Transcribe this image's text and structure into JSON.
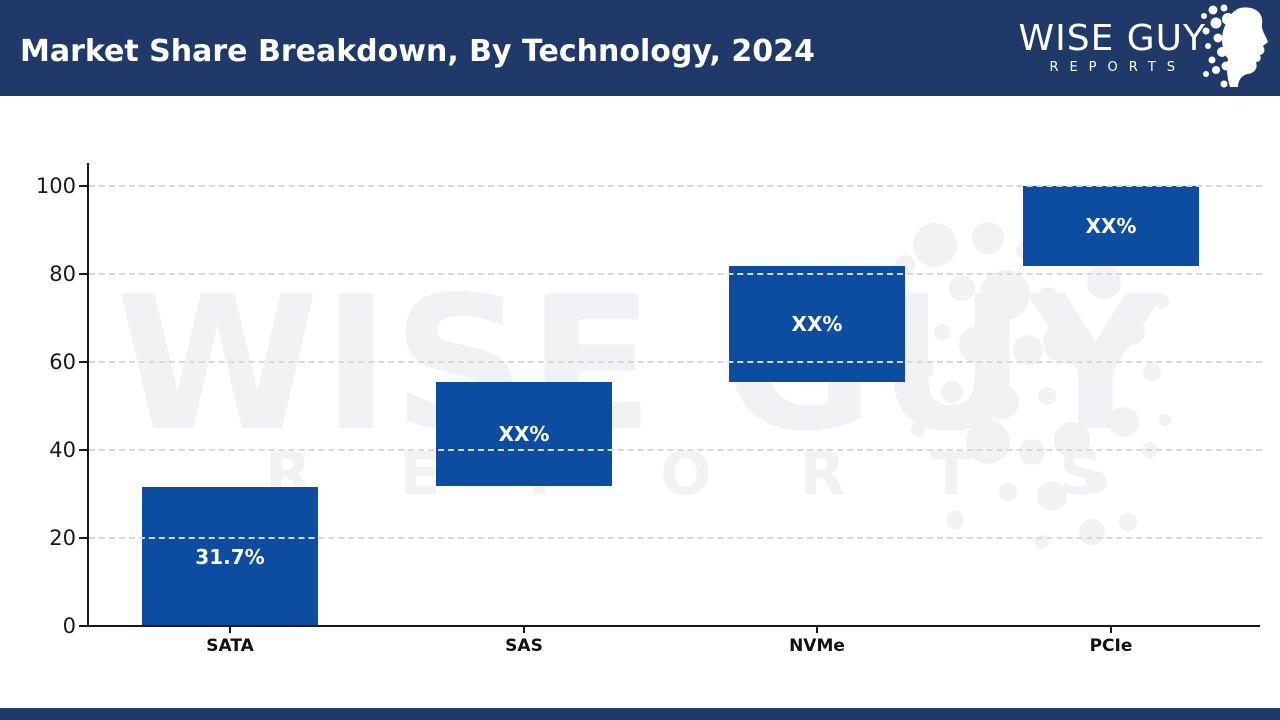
{
  "header": {
    "title": "Market Share Breakdown, By Technology, 2024",
    "logo": {
      "line1": "WISE GUY",
      "line2": "REPORTS"
    }
  },
  "watermark": {
    "line1": "WISE GUY",
    "line2": "REPORTS"
  },
  "colors": {
    "header_bg": "#1f3a68",
    "footer_bg": "#1f3a68",
    "bar": "#0c4da1",
    "bar_label_text": "#ffffff",
    "gridline": "#d9d9d9",
    "axis": "#1a1a1a",
    "watermark": "#f2f2f4"
  },
  "chart_data": {
    "type": "bar",
    "subtype": "waterfall",
    "title": "Market Share Breakdown, By Technology, 2024",
    "categories": [
      "SATA",
      "SAS",
      "NVMe",
      "PCIe"
    ],
    "segments": [
      {
        "category": "SATA",
        "start": 0,
        "end": 31.7,
        "label": "31.7%"
      },
      {
        "category": "SAS",
        "start": 31.7,
        "end": 55.4,
        "label": "XX%"
      },
      {
        "category": "NVMe",
        "start": 55.4,
        "end": 81.8,
        "label": "XX%"
      },
      {
        "category": "PCIe",
        "start": 81.8,
        "end": 100,
        "label": "XX%"
      }
    ],
    "yticks": [
      0,
      20,
      40,
      60,
      80,
      100
    ],
    "ylim": [
      0,
      105
    ],
    "xlabel": "",
    "ylabel": "",
    "grid": "horizontal-dashed-above-bars",
    "legend": "none"
  }
}
